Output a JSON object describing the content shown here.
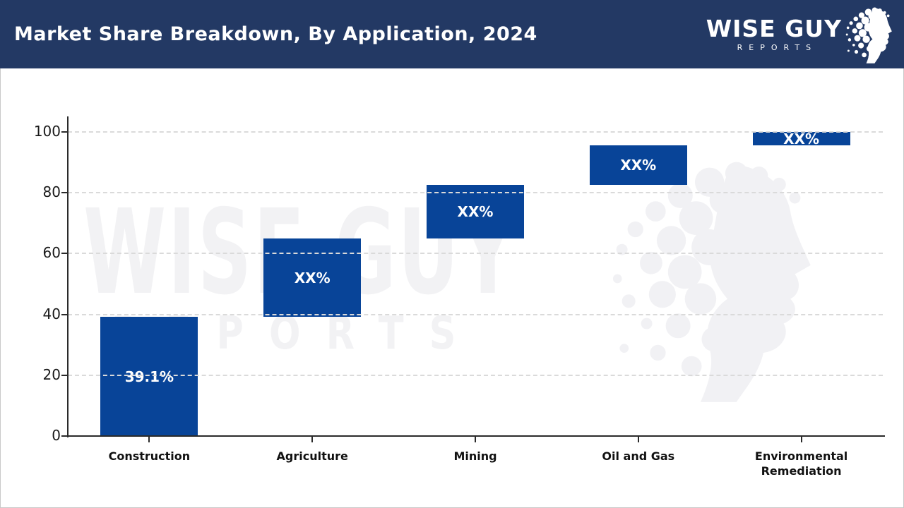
{
  "header": {
    "title": "Market Share Breakdown, By Application, 2024",
    "logo": {
      "brand": "WISE GUY",
      "sub": "REPORTS"
    }
  },
  "watermark": {
    "brand": "WISE GUY",
    "sub": "REPORTS"
  },
  "chart_data": {
    "type": "bar",
    "subtype": "waterfall",
    "title": "Market Share Breakdown, By Application, 2024",
    "xlabel": "",
    "ylabel": "",
    "categories": [
      "Construction",
      "Agriculture",
      "Mining",
      "Oil and Gas",
      "Environmental Remediation"
    ],
    "segments": [
      {
        "category": "Construction",
        "start": 0,
        "end": 39.1,
        "label": "39.1%"
      },
      {
        "category": "Agriculture",
        "start": 39.1,
        "end": 65.0,
        "label": "XX%"
      },
      {
        "category": "Mining",
        "start": 65.0,
        "end": 82.5,
        "label": "XX%"
      },
      {
        "category": "Oil and Gas",
        "start": 82.5,
        "end": 95.5,
        "label": "XX%"
      },
      {
        "category": "Environmental Remediation",
        "start": 95.5,
        "end": 100,
        "label": "XX%"
      }
    ],
    "yticks": [
      0,
      20,
      40,
      60,
      80,
      100
    ],
    "ylim": [
      0,
      105
    ],
    "grid": "horizontal-dashed",
    "grid_above_bars": true,
    "legend": "none",
    "bar_color": "#084498",
    "bar_label_color": "#ffffff"
  },
  "colors": {
    "header_bg": "#233964",
    "header_text": "#ffffff",
    "axis": "#2a2a2a",
    "gridline": "#dadada",
    "tick_label": "#1a1a1a",
    "watermark": "#f2f2f4",
    "page_bg": "#ffffff"
  }
}
